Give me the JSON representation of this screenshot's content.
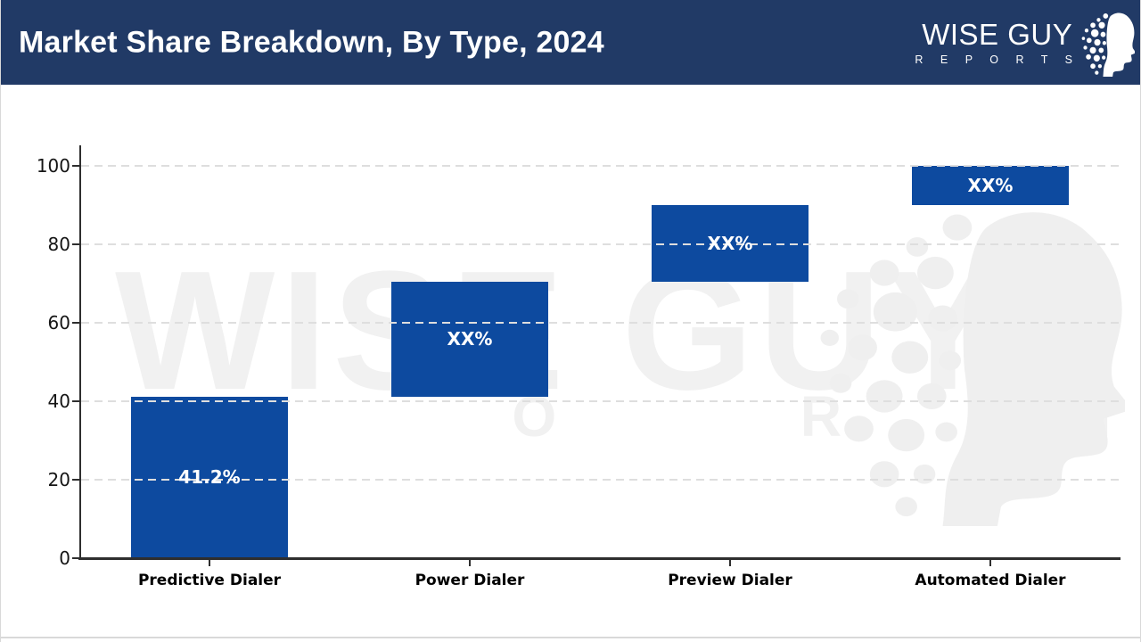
{
  "header": {
    "title": "Market Share Breakdown, By Type, 2024",
    "logo": {
      "wordmark": "WISE GUY",
      "subtext": "R E P O R T S"
    }
  },
  "watermark": {
    "line1": "WISE GUY",
    "line2": "P O R T S"
  },
  "chart_data": {
    "type": "bar",
    "subtype": "waterfall",
    "title": "Market Share Breakdown, By Type, 2024",
    "categories": [
      "Predictive Dialer",
      "Power Dialer",
      "Preview Dialer",
      "Automated Dialer"
    ],
    "bars": [
      {
        "category": "Predictive Dialer",
        "start": 0,
        "end": 41.2,
        "label": "41.2%"
      },
      {
        "category": "Power Dialer",
        "start": 41.2,
        "end": 70.5,
        "label": "XX%"
      },
      {
        "category": "Preview Dialer",
        "start": 70.5,
        "end": 90,
        "label": "XX%"
      },
      {
        "category": "Automated Dialer",
        "start": 90,
        "end": 100,
        "label": "XX%"
      }
    ],
    "ylim": [
      0,
      100
    ],
    "yticks": [
      0,
      20,
      40,
      60,
      80,
      100
    ],
    "xlabel": "",
    "ylabel": "",
    "legend_position": "none",
    "grid": {
      "axis": "y",
      "style": "dashed",
      "color": "#dedede",
      "over_bars": true
    },
    "bar_color": "#0d4a9f",
    "bar_label_color": "#ffffff"
  },
  "colors": {
    "header_bg": "#213a66",
    "bar": "#0d4a9f",
    "axis": "#2e2e2e",
    "watermark": "#f1f1f1"
  }
}
